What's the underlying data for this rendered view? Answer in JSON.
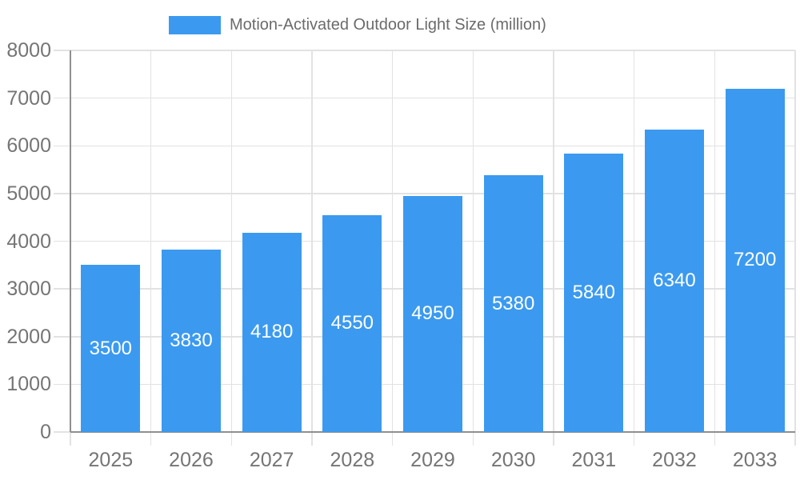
{
  "legend": {
    "label": "Motion-Activated Outdoor Light Size (million)"
  },
  "chart_data": {
    "type": "bar",
    "title": "Motion-Activated Outdoor Light Size (million)",
    "categories": [
      "2025",
      "2026",
      "2027",
      "2028",
      "2029",
      "2030",
      "2031",
      "2032",
      "2033"
    ],
    "values": [
      3500,
      3830,
      4180,
      4550,
      4950,
      5380,
      5840,
      6340,
      7200
    ],
    "series": [
      {
        "name": "Motion-Activated Outdoor Light Size (million)",
        "values": [
          3500,
          3830,
          4180,
          4550,
          4950,
          5380,
          5840,
          6340,
          7200
        ]
      }
    ],
    "xlabel": "",
    "ylabel": "",
    "ylim": [
      0,
      8000
    ],
    "yticks": [
      0,
      1000,
      2000,
      3000,
      4000,
      5000,
      6000,
      7000,
      8000
    ],
    "grid": true,
    "legend_position": "top",
    "bar_label_position": "inside-center",
    "colors": {
      "bar": "#3B9AEF",
      "bar_label": "#FFFFFF",
      "grid_line": "#E2E2E2",
      "axis_line": "#8F8F8F",
      "tick_text": "#757575",
      "legend_text": "#6B6B6B",
      "background": "#FFFFFF"
    }
  }
}
